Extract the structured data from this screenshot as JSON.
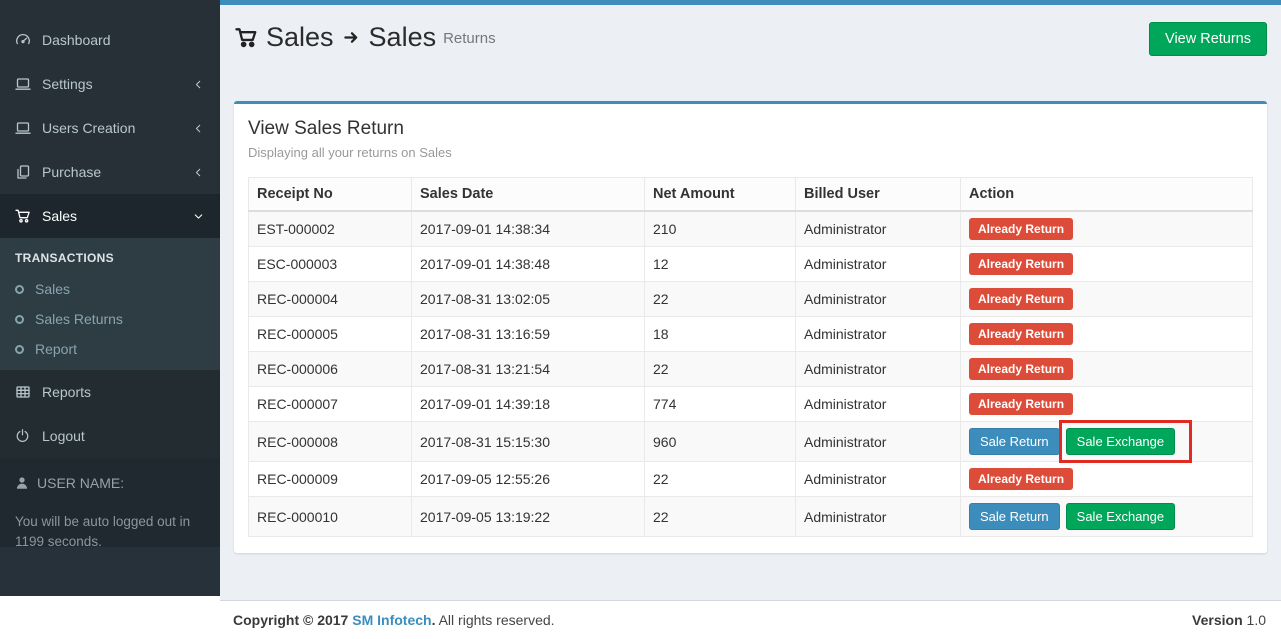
{
  "colors": {
    "accent_blue": "#3c8dbc",
    "button_green": "#00a65a",
    "badge_red": "#dd4b39",
    "highlight_red": "#e12a22",
    "sidebar_dark": "#263036",
    "content_background": "#ecf0f5"
  },
  "sidebar": {
    "menu": [
      {
        "label": "Dashboard",
        "icon": "dashboard-icon"
      },
      {
        "label": "Settings",
        "icon": "laptop-icon",
        "chevron": "left"
      },
      {
        "label": "Users Creation",
        "icon": "laptop-icon",
        "chevron": "left"
      },
      {
        "label": "Purchase",
        "icon": "copy-icon",
        "chevron": "left"
      },
      {
        "label": "Sales",
        "icon": "cart-icon",
        "chevron": "down",
        "active": true
      }
    ],
    "submenu_header": "TRANSACTIONS",
    "submenu": [
      "Sales",
      "Sales Returns",
      "Report"
    ],
    "menu_lower": [
      {
        "label": "Reports",
        "icon": "table-icon"
      },
      {
        "label": "Logout",
        "icon": "power-icon"
      }
    ],
    "user_label": "USER NAME:",
    "auto_logout_line1": "You will be auto logged out in",
    "auto_logout_line2": "1199 seconds."
  },
  "header": {
    "title_primary": "Sales",
    "title_secondary": "Sales",
    "title_sub": "Returns",
    "view_returns_label": "View Returns"
  },
  "panel": {
    "title": "View Sales Return",
    "subtitle": "Displaying all your returns on Sales"
  },
  "table": {
    "columns": [
      "Receipt No",
      "Sales Date",
      "Net Amount",
      "Billed User",
      "Action"
    ],
    "rows": [
      {
        "receipt": "EST-000002",
        "date": "2017-09-01 14:38:34",
        "amount": "210",
        "user": "Administrator",
        "actions": [
          {
            "label": "Already Return",
            "type": "badge"
          }
        ]
      },
      {
        "receipt": "ESC-000003",
        "date": "2017-09-01 14:38:48",
        "amount": "12",
        "user": "Administrator",
        "actions": [
          {
            "label": "Already Return",
            "type": "badge"
          }
        ]
      },
      {
        "receipt": "REC-000004",
        "date": "2017-08-31 13:02:05",
        "amount": "22",
        "user": "Administrator",
        "actions": [
          {
            "label": "Already Return",
            "type": "badge"
          }
        ]
      },
      {
        "receipt": "REC-000005",
        "date": "2017-08-31 13:16:59",
        "amount": "18",
        "user": "Administrator",
        "actions": [
          {
            "label": "Already Return",
            "type": "badge"
          }
        ]
      },
      {
        "receipt": "REC-000006",
        "date": "2017-08-31 13:21:54",
        "amount": "22",
        "user": "Administrator",
        "actions": [
          {
            "label": "Already Return",
            "type": "badge"
          }
        ]
      },
      {
        "receipt": "REC-000007",
        "date": "2017-09-01 14:39:18",
        "amount": "774",
        "user": "Administrator",
        "actions": [
          {
            "label": "Already Return",
            "type": "badge"
          }
        ]
      },
      {
        "receipt": "REC-000008",
        "date": "2017-08-31 15:15:30",
        "amount": "960",
        "user": "Administrator",
        "actions": [
          {
            "label": "Sale Return",
            "type": "button-blue"
          },
          {
            "label": "Sale Exchange",
            "type": "button-green",
            "highlighted": true
          }
        ]
      },
      {
        "receipt": "REC-000009",
        "date": "2017-09-05 12:55:26",
        "amount": "22",
        "user": "Administrator",
        "actions": [
          {
            "label": "Already Return",
            "type": "badge"
          }
        ]
      },
      {
        "receipt": "REC-000010",
        "date": "2017-09-05 13:19:22",
        "amount": "22",
        "user": "Administrator",
        "actions": [
          {
            "label": "Sale Return",
            "type": "button-blue"
          },
          {
            "label": "Sale Exchange",
            "type": "button-green"
          }
        ]
      }
    ]
  },
  "footer": {
    "copyright_bold": "Copyright © 2017",
    "brand": "SM Infotech",
    "brand_suffix": ".",
    "rights": "All rights reserved.",
    "version_label": "Version",
    "version_value": "1.0"
  }
}
